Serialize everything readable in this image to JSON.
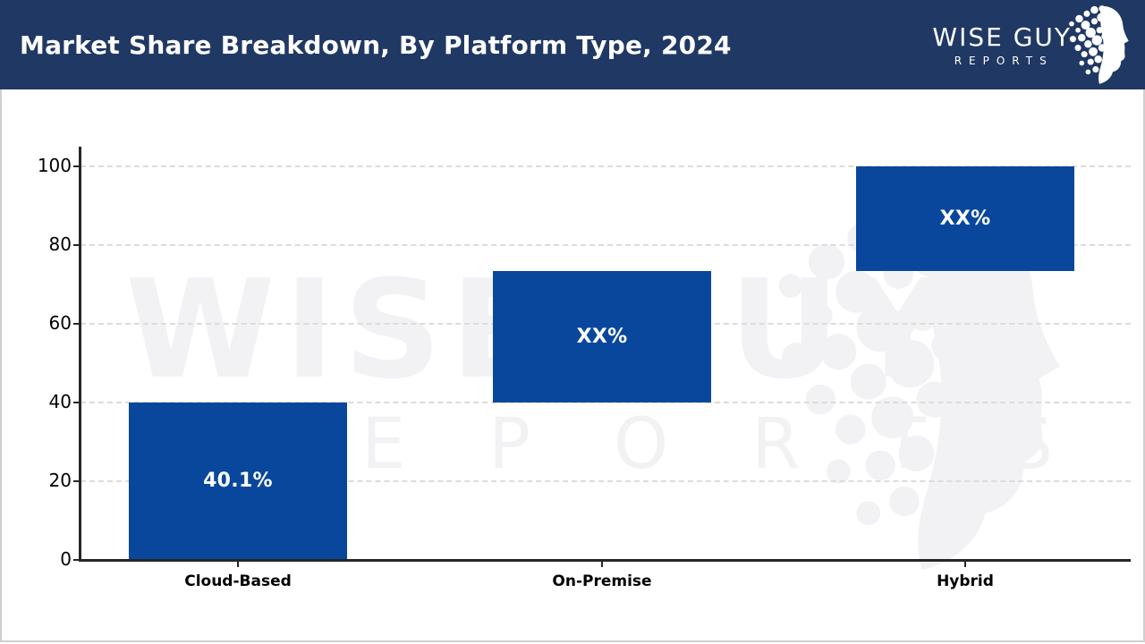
{
  "header": {
    "title": "Market Share Breakdown, By Platform Type, 2024",
    "logo": {
      "line1": "WISE GUY",
      "line2": "REPORTS"
    }
  },
  "watermark": {
    "line1": "WISE GUY",
    "line2": "R E P O R T S"
  },
  "chart_data": {
    "type": "bar",
    "subtype": "floating-segment-breakdown",
    "title": "Market Share Breakdown, By Platform Type, 2024",
    "categories": [
      "Cloud-Based",
      "On-Premise",
      "Hybrid"
    ],
    "segments": [
      {
        "category": "Cloud-Based",
        "start": 0,
        "end": 40.1,
        "label": "40.1%"
      },
      {
        "category": "On-Premise",
        "start": 40.1,
        "end": 73.5,
        "label": "XX%"
      },
      {
        "category": "Hybrid",
        "start": 73.5,
        "end": 100,
        "label": "XX%"
      }
    ],
    "yticks": [
      0,
      20,
      40,
      60,
      80,
      100
    ],
    "ylim": [
      0,
      105
    ],
    "grid": "dashed horizontal",
    "legend": "none",
    "xlabel": "",
    "ylabel": ""
  },
  "colors": {
    "header_bg": "#203864",
    "bar": "#09479C",
    "bar_label": "#ffffff",
    "axis": "#262626",
    "gridline": "#dcdcdc",
    "tick_label": "#000000",
    "watermark": "#f2f2f4",
    "border": "#cfcfcf"
  }
}
